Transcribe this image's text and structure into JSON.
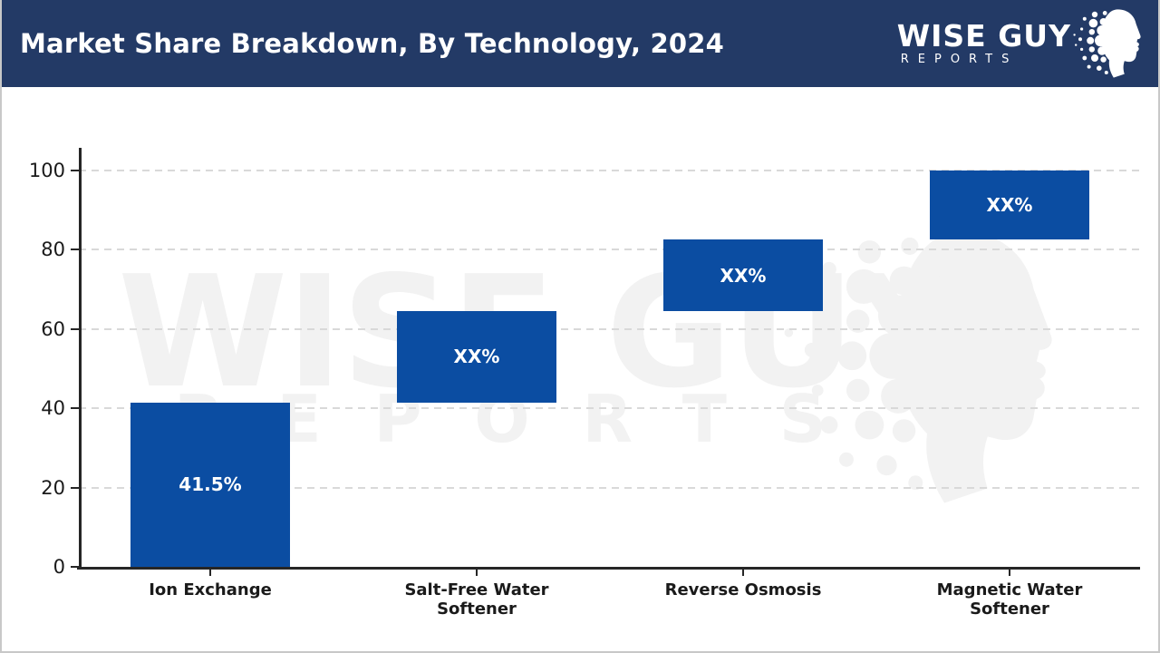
{
  "header": {
    "title": "Market Share Breakdown, By Technology, 2024",
    "logo": {
      "line1": "WISE GUY",
      "line2": "REPORTS"
    }
  },
  "watermark": {
    "line1": "WISE GUY",
    "line2": "REPORTS"
  },
  "chart_data": {
    "type": "bar",
    "subtype": "waterfall",
    "title": "Market Share Breakdown, By Technology, 2024",
    "categories": [
      "Ion Exchange",
      "Salt-Free Water Softener",
      "Reverse Osmosis",
      "Magnetic Water Softener"
    ],
    "bars": [
      {
        "category": "Ion Exchange",
        "start": 0,
        "end": 41.5,
        "label": "41.5%"
      },
      {
        "category": "Salt-Free Water Softener",
        "start": 41.5,
        "end": 64.5,
        "label": "XX%"
      },
      {
        "category": "Reverse Osmosis",
        "start": 64.5,
        "end": 82.5,
        "label": "XX%"
      },
      {
        "category": "Magnetic Water Softener",
        "start": 82.5,
        "end": 100,
        "label": "XX%"
      }
    ],
    "ylim": [
      0,
      100
    ],
    "yticks": [
      0,
      20,
      40,
      60,
      80,
      100
    ],
    "xlabel": "",
    "ylabel": "",
    "grid": "horizontal-dashed",
    "legend": "none",
    "bar_label_color": "#FFFFFF"
  },
  "colors": {
    "header_bg": "#233A66",
    "bar": "#0B4DA2",
    "grid": "#D9D9D9",
    "axis": "#262626",
    "tick_label": "#1A1A1A",
    "watermark": "#F2F2F2",
    "frame_border": "#C8C8C8",
    "background": "#FFFFFF"
  }
}
